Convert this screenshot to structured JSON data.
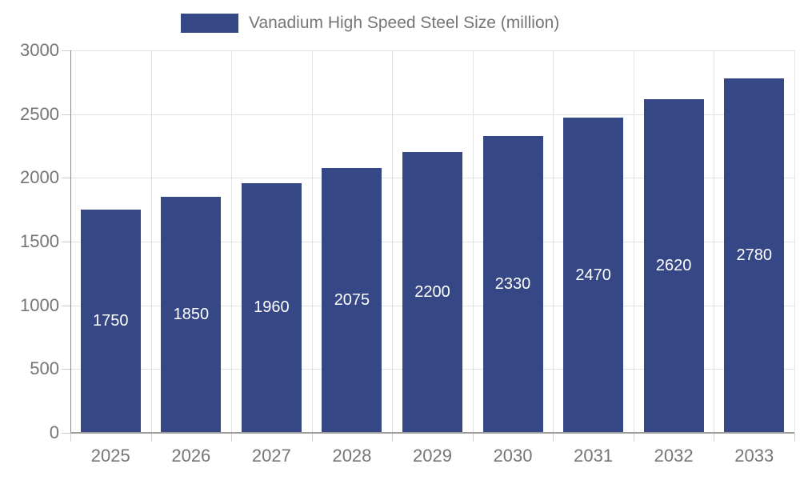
{
  "chart_data": {
    "type": "bar",
    "title": "",
    "legend": {
      "label": "Vanadium High Speed Steel Size (million)",
      "position": "top"
    },
    "categories": [
      "2025",
      "2026",
      "2027",
      "2028",
      "2029",
      "2030",
      "2031",
      "2032",
      "2033"
    ],
    "values": [
      1750,
      1850,
      1960,
      2075,
      2200,
      2330,
      2470,
      2620,
      2780
    ],
    "data_labels": [
      "1750",
      "1850",
      "1960",
      "2075",
      "2200",
      "2330",
      "2470",
      "2620",
      "2780"
    ],
    "xlabel": "",
    "ylabel": "",
    "ylim": [
      0,
      3000
    ],
    "yticks": [
      0,
      500,
      1000,
      1500,
      2000,
      2500,
      3000
    ],
    "grid": true,
    "colors": {
      "bar": "#364786",
      "bar_label_text": "#ffffff",
      "axis_text": "#757575",
      "legend_text": "#757575",
      "gridline": "#e2e2e2",
      "y_axis_line": "#8a8a8a",
      "x_axis_line": "#9a9a9a",
      "tick_mark": "#cccccc"
    }
  }
}
